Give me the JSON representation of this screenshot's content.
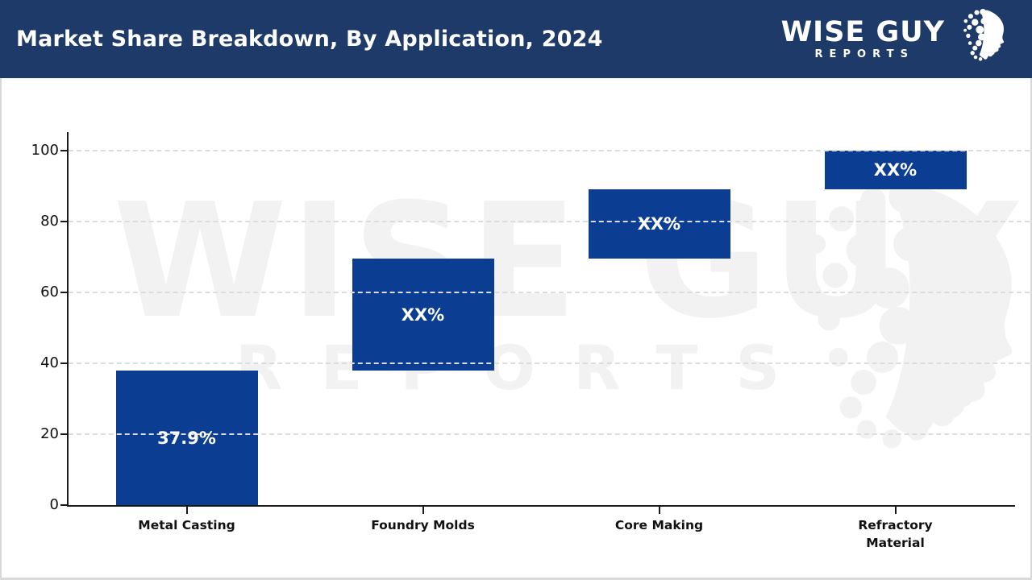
{
  "header": {
    "title": "Market Share Breakdown, By Application, 2024",
    "logo": {
      "line1": "WISE GUY",
      "line2": "REPORTS"
    }
  },
  "watermark": {
    "line1": "WISE GUY",
    "line2": "REPORTS"
  },
  "colors": {
    "header_bg": "#1e3a68",
    "bar": "#0b3e92",
    "axis": "#1a1a1a",
    "grid": "#dcdcdc",
    "watermark": "#f2f2f2",
    "bar_label": "#ffffff"
  },
  "chart_data": {
    "type": "waterfall",
    "title": "Market Share Breakdown, By Application, 2024",
    "categories": [
      "Metal Casting",
      "Foundry Molds",
      "Core Making",
      "Refractory Material"
    ],
    "segments": [
      {
        "category": "Metal Casting",
        "start": 0,
        "end": 37.9,
        "label": "37.9%"
      },
      {
        "category": "Foundry Molds",
        "start": 37.9,
        "end": 69.5,
        "label": "XX%"
      },
      {
        "category": "Core Making",
        "start": 69.5,
        "end": 89.0,
        "label": "XX%"
      },
      {
        "category": "Refractory Material",
        "start": 89.0,
        "end": 100,
        "label": "XX%"
      }
    ],
    "ylim": [
      0,
      100
    ],
    "yticks": [
      0,
      20,
      40,
      60,
      80,
      100
    ],
    "xlabel": "",
    "ylabel": "",
    "grid": "horizontal-dashed",
    "legend": "none",
    "bar_color": "#0b3e92",
    "value_labels_inside_bars": true
  }
}
